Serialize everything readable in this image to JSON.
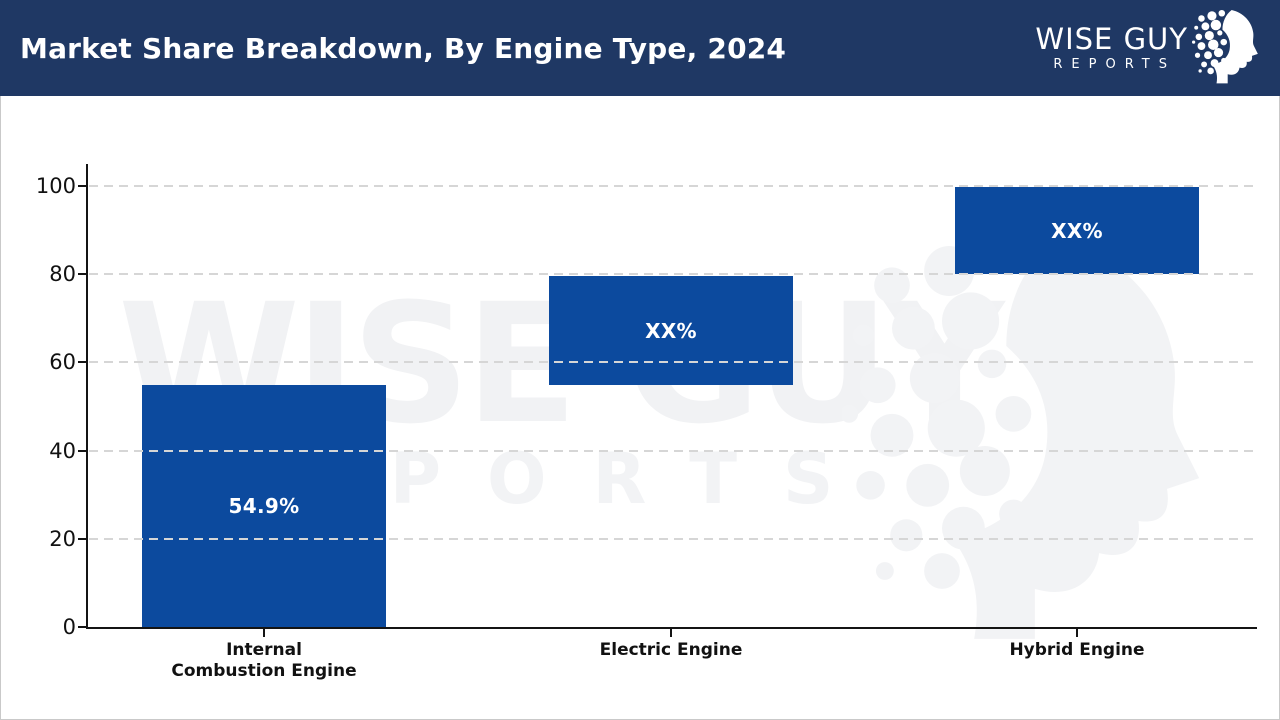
{
  "header": {
    "title": "Market Share Breakdown, By Engine Type, 2024",
    "logo": {
      "line1": "WISE GUY",
      "line2": "REPORTS"
    }
  },
  "watermark": {
    "line1": "WISE GUY",
    "line2": "REPORTS"
  },
  "chart_data": {
    "type": "bar",
    "subtype": "waterfall",
    "title": "Market Share Breakdown, By Engine Type, 2024",
    "categories": [
      "Internal Combustion Engine",
      "Electric Engine",
      "Hybrid Engine"
    ],
    "categories_lines": [
      [
        "Internal",
        "Combustion Engine"
      ],
      [
        "Electric Engine"
      ],
      [
        "Hybrid Engine"
      ]
    ],
    "bars": [
      {
        "category": "Internal Combustion Engine",
        "start": 0,
        "end": 54.9,
        "label": "54.9%"
      },
      {
        "category": "Electric Engine",
        "start": 54.9,
        "end": 79.5,
        "label": "XX%"
      },
      {
        "category": "Hybrid Engine",
        "start": 80,
        "end": 99.8,
        "label": "XX%"
      }
    ],
    "xlabel": "",
    "ylabel": "",
    "ylim": [
      0,
      100
    ],
    "yticks": [
      0,
      20,
      40,
      60,
      80,
      100
    ],
    "grid": "horizontal-dashed",
    "legend": "none",
    "colors": {
      "bar": "#0c4a9e",
      "bar_label": "#ffffff",
      "grid": "#d6d6d6",
      "axis": "#141414",
      "header_bg": "#1f3864",
      "header_text": "#ffffff",
      "watermark": "#f1f2f4"
    }
  }
}
